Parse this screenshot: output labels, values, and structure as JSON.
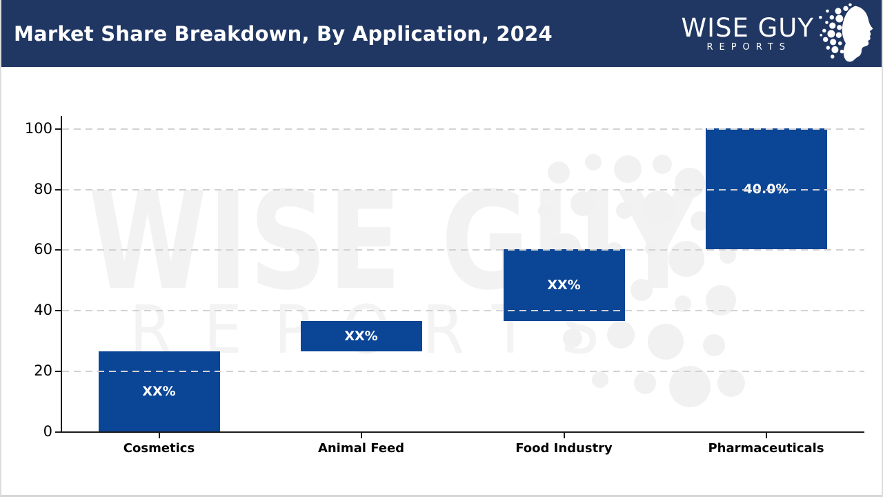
{
  "header": {
    "title": "Market Share Breakdown, By Application, 2024",
    "logo": {
      "line1": "WISE GUY",
      "line2": "REPORTS"
    }
  },
  "watermark": {
    "line1": "WISE GUY",
    "line2": "REPORTS"
  },
  "chart_data": {
    "type": "bar",
    "variant": "floating-waterfall",
    "title": "Market Share Breakdown, By Application, 2024",
    "categories": [
      "Cosmetics",
      "Animal Feed",
      "Food Industry",
      "Pharmaceuticals"
    ],
    "bars": [
      {
        "category": "Cosmetics",
        "start": 0,
        "end": 26.5,
        "label": "XX%"
      },
      {
        "category": "Animal Feed",
        "start": 26.5,
        "end": 36.5,
        "label": "XX%"
      },
      {
        "category": "Food Industry",
        "start": 36.5,
        "end": 60,
        "label": "XX%"
      },
      {
        "category": "Pharmaceuticals",
        "start": 60,
        "end": 100,
        "label": "40.0%"
      }
    ],
    "yticks": [
      0,
      20,
      40,
      60,
      80,
      100
    ],
    "ylim": [
      0,
      104
    ],
    "xlabel": "",
    "ylabel": "",
    "grid": "horizontal-dashed",
    "legend": "none",
    "bar_color": "#0b4596",
    "bar_label_color": "#ffffff",
    "header_color": "#203763",
    "grid_color": "#d2d2d2"
  }
}
